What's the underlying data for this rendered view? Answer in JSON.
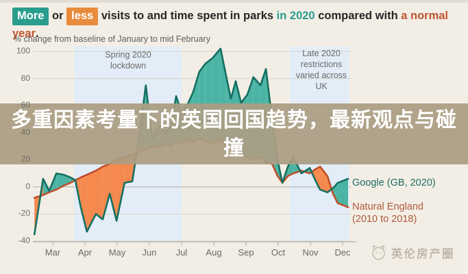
{
  "title": {
    "badge_more": "More",
    "conn1": "or",
    "badge_less": "less",
    "body": "visits to and time spent in parks",
    "year_highlight": "in 2020",
    "conn2": "compared with",
    "normal_highlight": "a normal year",
    "period": "."
  },
  "subtitle": "% change from baseline of January to mid February",
  "annotations": {
    "spring": "Spring 2020 lockdown",
    "late": "Late 2020 restrictions varied across UK"
  },
  "legend": {
    "google": "Google (GB, 2020)",
    "natural": "Natural England (2010 to 2018)"
  },
  "overlay_banner": {
    "text": "多重因素考量下的英国回国趋势，最新观点与碰撞"
  },
  "watermark": {
    "text": "英伦房产圈"
  },
  "colors": {
    "accent_teal": "#2a9d8f",
    "accent_orange": "#e98b3d",
    "title_orange_red": "#c2542f",
    "band": "#e3edf7",
    "grid": "#d6d2c8",
    "grid_zero": "#b3afa6",
    "axis": "#b4b1a9",
    "fill_above": "#4cb4a4",
    "fill_below": "#f5894e",
    "overlay_bg": "rgba(171,157,131,0.93)",
    "watermark_gray": "#c0b8ab",
    "page_bg": "#f2eee5"
  },
  "chart_data": {
    "type": "line",
    "title": "More or less visits to and time spent in parks in 2020 compared with a normal year.",
    "ylabel": "% change from baseline of January to mid February",
    "xlabel": "",
    "x_unit": "months since 1 March 2020 (weekly samples)",
    "x_ticks": [
      "Mar",
      "Apr",
      "May",
      "Jun",
      "Jul",
      "Aug",
      "Sep",
      "Oct",
      "Nov",
      "Dec"
    ],
    "y_ticks": [
      100,
      80,
      60,
      40,
      20,
      0,
      -20,
      -40
    ],
    "ylim": [
      -45,
      105
    ],
    "xlim": [
      -0.7,
      9.3
    ],
    "grid": true,
    "legend_position": "right of line ends",
    "fill_meaning": "teal fill where 2020 above normal-year baseline, orange fill where below",
    "shaded_regions": [
      {
        "label": "Spring 2020 lockdown",
        "x0": 0.66,
        "x1": 4.0
      },
      {
        "label": "Late 2020 restrictions varied across UK",
        "x0": 7.36,
        "x1": 9.21
      }
    ],
    "x": [
      -0.57,
      -0.3,
      -0.11,
      0.11,
      0.34,
      0.55,
      0.7,
      0.87,
      1.06,
      1.34,
      1.55,
      1.77,
      1.98,
      2.23,
      2.47,
      2.7,
      2.89,
      3.09,
      3.3,
      3.51,
      3.68,
      3.83,
      4.0,
      4.17,
      4.36,
      4.55,
      4.74,
      4.96,
      5.21,
      5.4,
      5.53,
      5.68,
      5.85,
      6.04,
      6.23,
      6.45,
      6.62,
      6.81,
      6.98,
      7.13,
      7.3,
      7.47,
      7.72,
      7.98,
      8.15,
      8.3,
      8.53,
      8.7,
      8.85,
      9.17
    ],
    "series": [
      {
        "name": "Google (GB, 2020)",
        "color": "#156f61",
        "values": [
          -35,
          6,
          -3,
          10,
          9,
          7,
          5,
          -15,
          -33,
          -20,
          -24,
          -5,
          -25,
          3,
          4,
          40,
          75,
          35,
          45,
          40,
          45,
          67,
          55,
          60,
          70,
          85,
          91,
          95,
          102,
          80,
          65,
          78,
          62,
          68,
          81,
          75,
          87,
          50,
          20,
          3,
          15,
          22,
          10,
          14,
          5,
          -2,
          -4,
          -1,
          3,
          6
        ]
      },
      {
        "name": "Natural England (2010 to 2018)",
        "color": "#bf4f2c",
        "values": [
          -8,
          -6,
          -4,
          -2,
          1,
          3,
          5,
          7,
          9,
          12,
          15,
          17,
          20,
          22,
          24,
          26,
          28,
          30,
          29,
          32,
          30,
          34,
          32,
          35,
          33,
          36,
          34,
          32,
          35,
          30,
          28,
          26,
          24,
          22,
          20,
          22,
          18,
          17,
          8,
          3,
          8,
          10,
          12,
          10,
          13,
          15,
          8,
          -5,
          -12,
          -15
        ]
      }
    ]
  }
}
